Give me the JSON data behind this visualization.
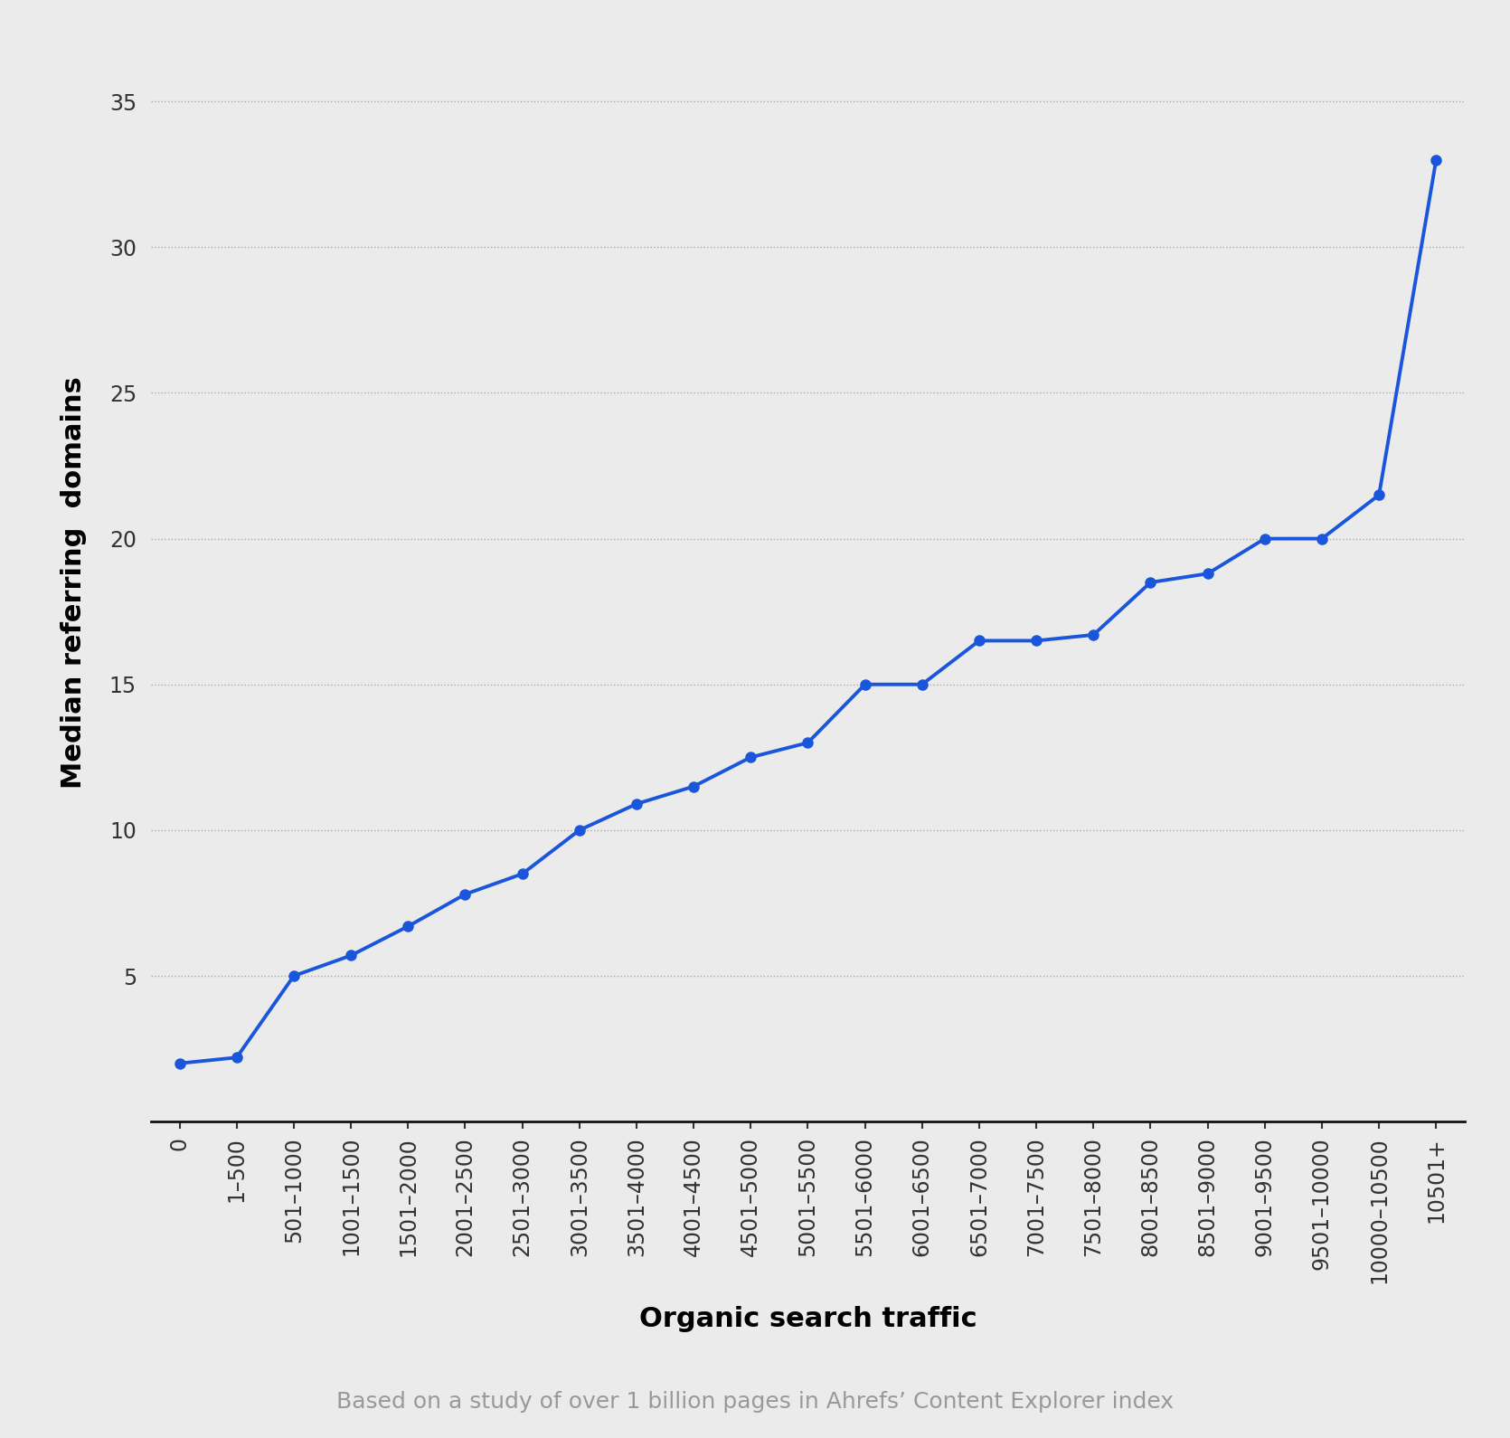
{
  "x_labels": [
    "0",
    "1–500",
    "501–1000",
    "1001–1500",
    "1501–2000",
    "2001–2500",
    "2501–3000",
    "3001–3500",
    "3501–4000",
    "4001–4500",
    "4501–5000",
    "5001–5500",
    "5501–6000",
    "6001–6500",
    "6501–7000",
    "7001–7500",
    "7501–8000",
    "8001–8500",
    "8501–9000",
    "9001–9500",
    "9501–10000",
    "10000–10500",
    "10501+"
  ],
  "y_values": [
    2.0,
    2.2,
    5.0,
    5.7,
    6.7,
    7.8,
    8.5,
    10.0,
    10.9,
    11.5,
    12.5,
    13.0,
    15.0,
    15.0,
    16.5,
    16.5,
    16.7,
    18.5,
    18.8,
    20.0,
    20.0,
    21.5,
    33.0
  ],
  "line_color": "#1a56db",
  "marker_color": "#1a56db",
  "bg_color": "#ebebeb",
  "plot_bg_color": "#ebebeb",
  "ylabel": "Median referring  domains",
  "xlabel": "Organic search traffic",
  "footnote": "Based on a study of over 1 billion pages in Ahrefs’ Content Explorer index",
  "yticks": [
    5,
    10,
    15,
    20,
    25,
    30,
    35
  ],
  "ylim": [
    0,
    37
  ],
  "label_fontsize": 22,
  "tick_fontsize": 17,
  "footnote_fontsize": 18,
  "line_width": 2.8,
  "marker_size": 8
}
